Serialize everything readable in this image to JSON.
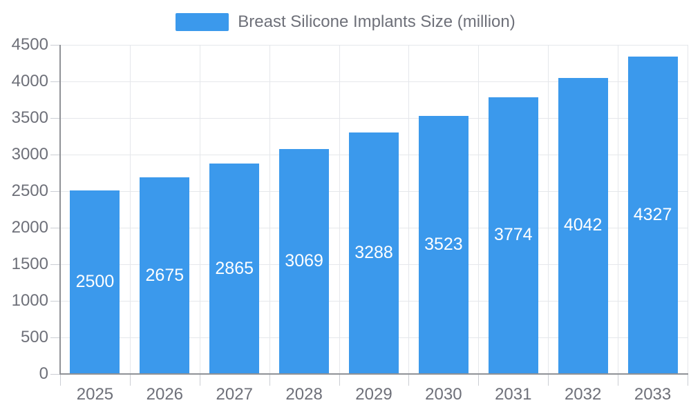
{
  "legend": {
    "label": "Breast Silicone Implants Size (million)"
  },
  "chart_data": {
    "type": "bar",
    "title": "",
    "legend_entries": [
      "Breast Silicone Implants Size (million)"
    ],
    "legend_position": "top-center",
    "categories": [
      "2025",
      "2026",
      "2027",
      "2028",
      "2029",
      "2030",
      "2031",
      "2032",
      "2033"
    ],
    "values": [
      2500,
      2675,
      2865,
      3069,
      3288,
      3523,
      3774,
      4042,
      4327
    ],
    "bar_labels": [
      "2500",
      "2675",
      "2865",
      "3069",
      "3288",
      "3523",
      "3774",
      "4042",
      "4327"
    ],
    "bar_label_position": "inside-center",
    "xlabel": "",
    "ylabel": "",
    "ylim": [
      0,
      4500
    ],
    "ytick_step": 500,
    "yticks": [
      0,
      500,
      1000,
      1500,
      2000,
      2500,
      3000,
      3500,
      4000,
      4500
    ],
    "grid": true,
    "colors": {
      "bar": "#3B99EC",
      "bar_value_text": "#FFFFFF",
      "axis_text": "#6E7079",
      "legend_text": "#6E7079",
      "gridline": "#E5E7EB",
      "axis_line": "#8F9196",
      "tick": "#CBCED4",
      "background": "#FFFFFF"
    }
  }
}
